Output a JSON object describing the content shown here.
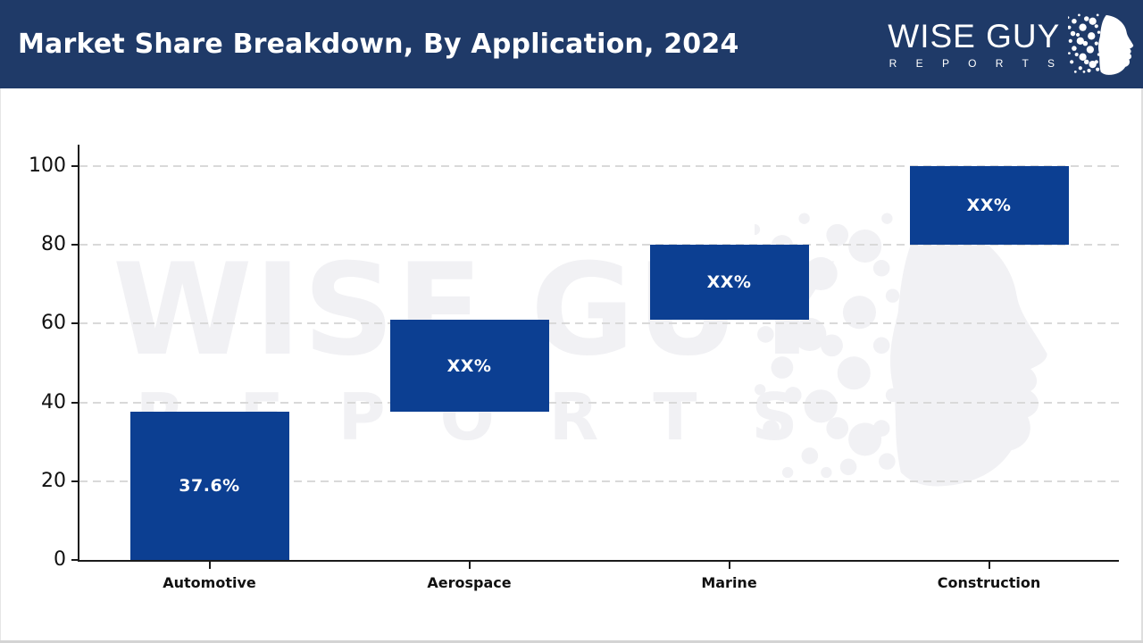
{
  "header": {
    "title": "Market Share Breakdown, By Application, 2024",
    "logo": {
      "line1": "WISE GUY",
      "line2": "R E P O R T S"
    }
  },
  "watermark": {
    "line1": "WISE GUY",
    "line2": "R E P O R T S"
  },
  "colors": {
    "header_bg": "#1f3a68",
    "bar_blue": "#0c3f92",
    "gridline": "#d9d9d9",
    "axis": "#1a1a1a",
    "watermark": "#f1f1f4",
    "value_label": "#ffffff"
  },
  "chart_data": {
    "type": "bar",
    "subtype": "waterfall",
    "title": "Market Share Breakdown, By Application, 2024",
    "categories": [
      "Automotive",
      "Aerospace",
      "Marine",
      "Construction"
    ],
    "segments": [
      [
        0,
        37.6
      ],
      [
        37.6,
        61
      ],
      [
        61,
        80
      ],
      [
        80,
        100
      ]
    ],
    "values": [
      37.6,
      23.4,
      19,
      20
    ],
    "bar_labels": [
      "37.6%",
      "XX%",
      "XX%",
      "XX%"
    ],
    "yticks": [
      0,
      20,
      40,
      60,
      80,
      100
    ],
    "ylim": [
      0,
      105
    ],
    "xlabel": "",
    "ylabel": "",
    "grid": "horizontal-dashed",
    "legend": "none",
    "bar_color": "#0c3f92"
  }
}
